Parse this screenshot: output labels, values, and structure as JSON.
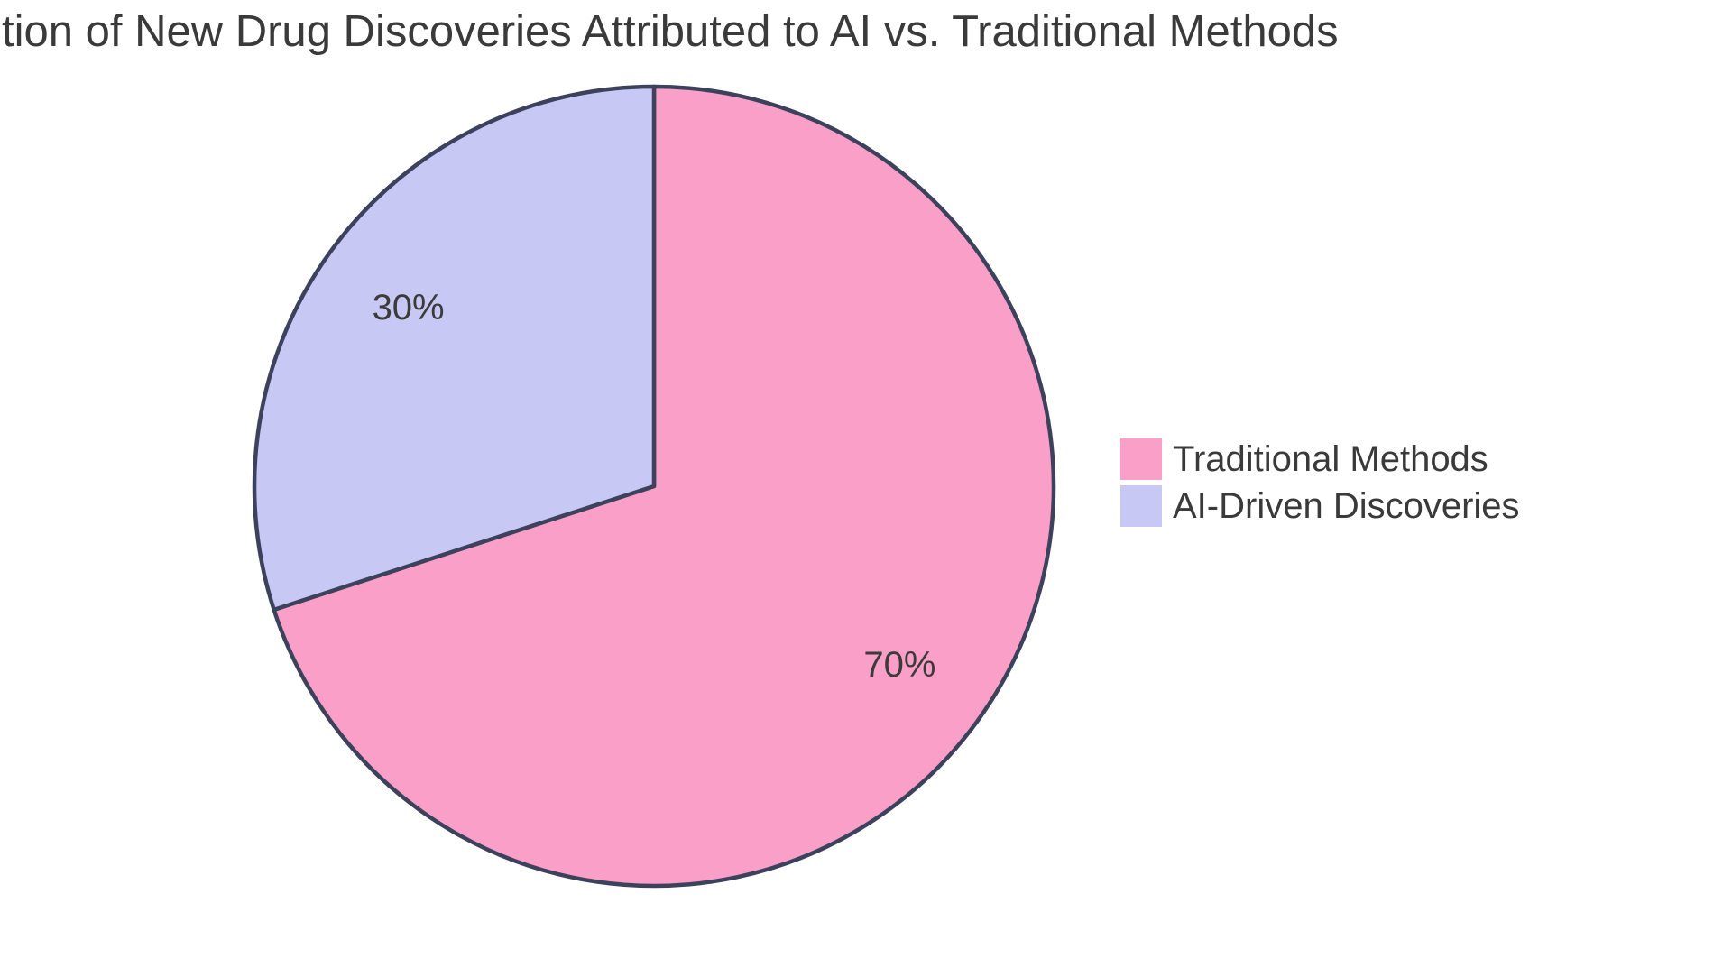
{
  "page": {
    "background_color": "#FFFFFF"
  },
  "chart_data": {
    "type": "pie",
    "title": "tion of New Drug Discoveries Attributed to AI vs. Traditional Methods",
    "slices": [
      {
        "label": "Traditional Methods",
        "value": 70,
        "pct_label": "70%",
        "color": "#FA9FC8"
      },
      {
        "label": "AI-Driven Discoveries",
        "value": 30,
        "pct_label": "30%",
        "color": "#C8C8F4"
      }
    ],
    "start_angle_deg": 90,
    "direction": "clockwise",
    "stroke_color": "#3D425C",
    "stroke_width": 4.5,
    "label_color": "#3B3B3B",
    "label_radius_ratio": 0.76,
    "legend_position": "right",
    "title_color": "#3A3A3A",
    "legend_text_color": "#3A3A3A"
  }
}
